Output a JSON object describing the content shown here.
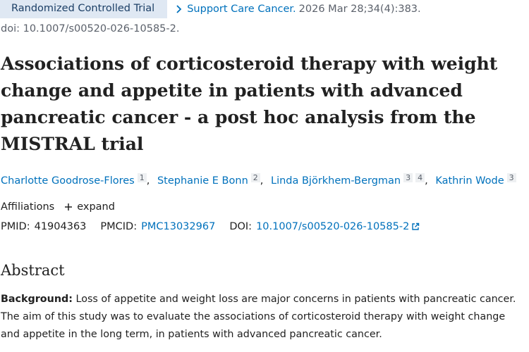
{
  "article_type": "Randomized Controlled Trial",
  "journal": "Support Care Cancer.",
  "citation": "2026 Mar 28;34(4):383.",
  "doi_line": "doi: 10.1007/s00520-026-10585-2.",
  "title": "Associations of corticosteroid therapy with weight change and appetite in patients with advanced pancreatic cancer - a post hoc analysis from the MISTRAL trial",
  "authors": [
    {
      "name": "Charlotte Goodrose-Flores",
      "affiliations": [
        "1"
      ]
    },
    {
      "name": "Stephanie E Bonn",
      "affiliations": [
        "2"
      ]
    },
    {
      "name": "Linda Björkhem-Bergman",
      "affiliations": [
        "3",
        "4"
      ]
    },
    {
      "name": "Kathrin Wode",
      "affiliations": [
        "3"
      ]
    }
  ],
  "affiliations": {
    "label": "Affiliations",
    "expand": "expand"
  },
  "identifiers": {
    "pmid_label": "PMID:",
    "pmid": "41904363",
    "pmcid_label": "PMCID:",
    "pmcid": "PMC13032967",
    "doi_label": "DOI:",
    "doi": "10.1007/s00520-026-10585-2"
  },
  "abstract": {
    "heading": "Abstract",
    "background_label": "Background:",
    "background_text": "Loss of appetite and weight loss are major concerns in patients with pancreatic cancer. The aim of this study was to evaluate the associations of corticosteroid therapy with weight change and appetite in the long term, in patients with advanced pancreatic cancer."
  }
}
